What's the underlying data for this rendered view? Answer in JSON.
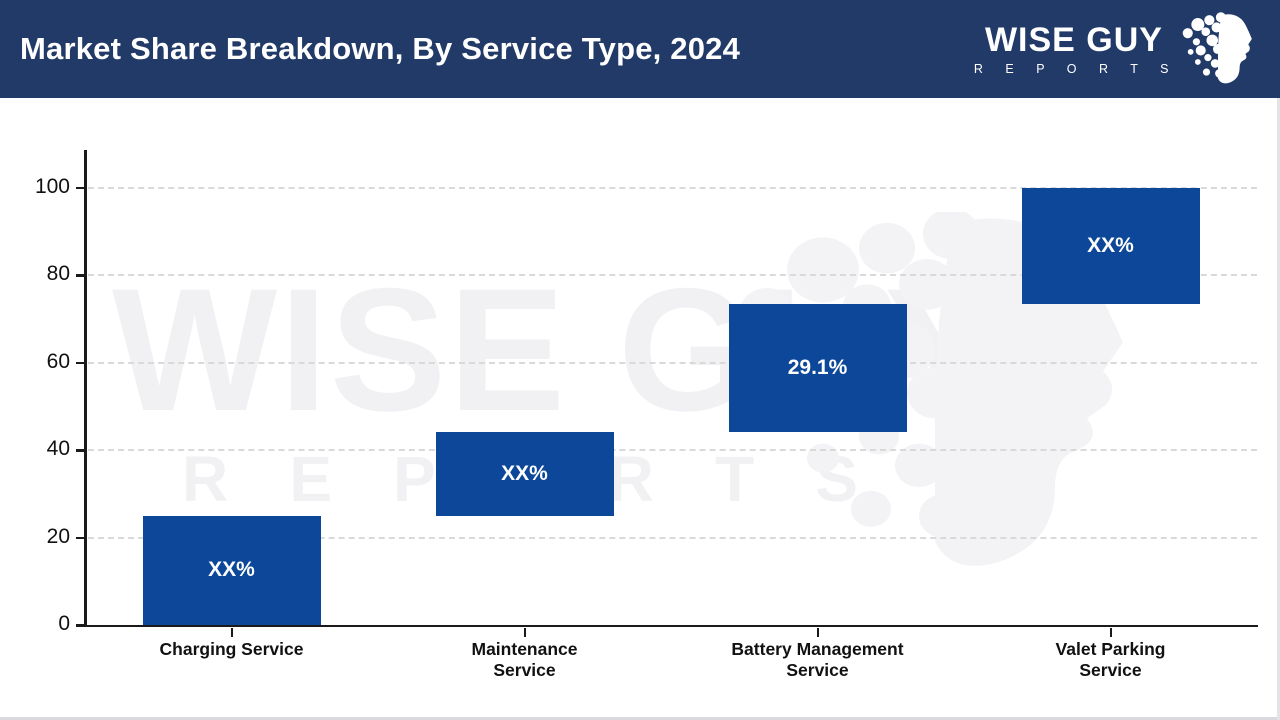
{
  "header": {
    "title": "Market Share Breakdown, By Service Type, 2024",
    "logo": {
      "line1": "WISE GUY",
      "line2": "R E P O R T S"
    }
  },
  "watermark": {
    "line1": "WISE GUY",
    "line2_letters": [
      "R",
      "E",
      "P",
      "O",
      "R",
      "T",
      "S"
    ]
  },
  "chart_data": {
    "type": "bar",
    "subtype": "floating-segment-waterfall",
    "title": "Market Share Breakdown, By Service Type, 2024",
    "categories": [
      "Charging Service",
      "Maintenance Service",
      "Battery Management Service",
      "Valet Parking Service"
    ],
    "category_label_lines": [
      [
        "Charging Service"
      ],
      [
        "Maintenance",
        "Service"
      ],
      [
        "Battery Management",
        "Service"
      ],
      [
        "Valet Parking",
        "Service"
      ]
    ],
    "segments": [
      {
        "category": "Charging Service",
        "from": 0,
        "to": 25,
        "label": "XX%"
      },
      {
        "category": "Maintenance Service",
        "from": 25,
        "to": 44.1,
        "label": "XX%"
      },
      {
        "category": "Battery Management Service",
        "from": 44.2,
        "to": 73.3,
        "label": "29.1%"
      },
      {
        "category": "Valet Parking Service",
        "from": 73.3,
        "to": 100,
        "label": "XX%"
      }
    ],
    "yticks": [
      0,
      20,
      40,
      60,
      80,
      100
    ],
    "ylim": [
      0,
      108
    ],
    "xlabel": "",
    "ylabel": "",
    "grid": "horizontal dashed",
    "legend": "none",
    "bar_color": "#0c4799",
    "bar_label_color": "#ffffff"
  },
  "colors": {
    "header_bg": "#223a68",
    "bar": "#0c4799",
    "gridline": "#d9d9d9",
    "axis": "#1a1a1a",
    "watermark": "#f1f1f4",
    "edge_line": "#d9d9de"
  }
}
